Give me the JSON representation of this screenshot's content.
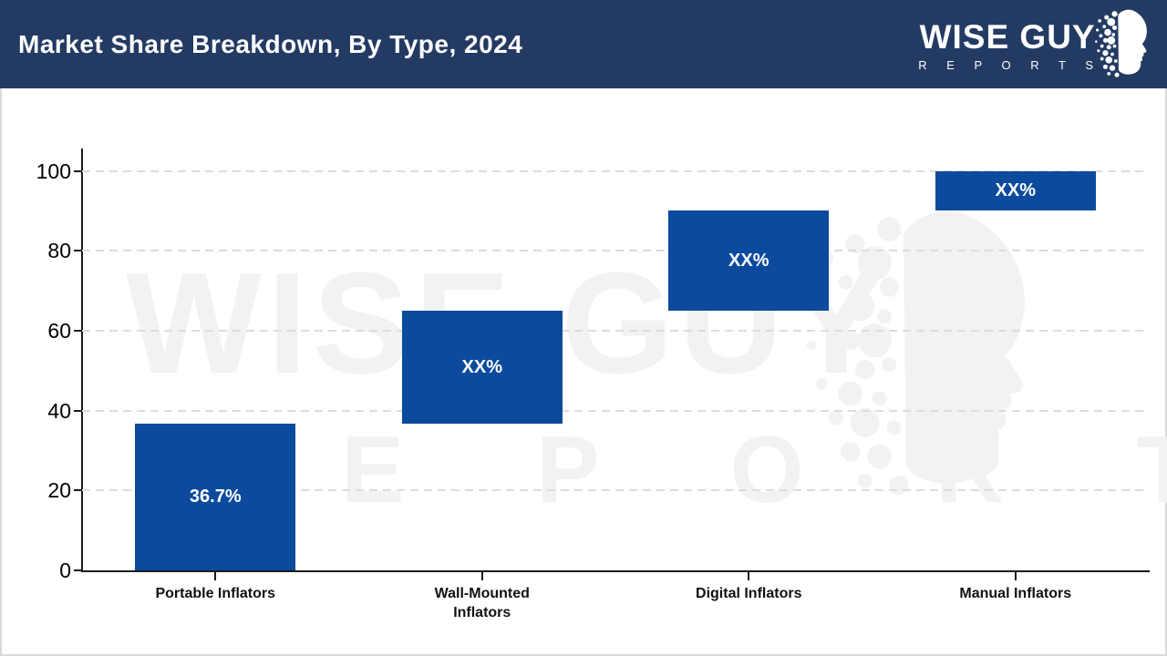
{
  "header": {
    "bg_color": "#233a63",
    "title": "Market Share Breakdown, By Type, 2024",
    "logo": {
      "name": "WISE GUY",
      "sub": "R E P O R T S"
    }
  },
  "watermark": {
    "name": "WISE GUY",
    "sub": "R E P O R T S"
  },
  "chart_data": {
    "type": "bar",
    "subtype": "waterfall",
    "title": "Market Share Breakdown, By Type, 2024",
    "categories": [
      "Portable Inflators",
      "Wall-Mounted Inflators",
      "Digital Inflators",
      "Manual Inflators"
    ],
    "series": [
      {
        "name": "Market share (%)",
        "segments": [
          {
            "category": "Portable Inflators",
            "start": 0,
            "end": 36.7,
            "value": 36.7,
            "label": "36.7%"
          },
          {
            "category": "Wall-Mounted Inflators",
            "start": 36.7,
            "end": 65,
            "value": 28.3,
            "label": "XX%"
          },
          {
            "category": "Digital Inflators",
            "start": 65,
            "end": 90,
            "value": 25,
            "label": "XX%"
          },
          {
            "category": "Manual Inflators",
            "start": 90,
            "end": 100,
            "value": 10,
            "label": "XX%"
          }
        ]
      }
    ],
    "xlabel": "",
    "ylabel": "",
    "ylim": [
      0,
      105
    ],
    "yticks": [
      0,
      20,
      40,
      60,
      80,
      100
    ],
    "grid": "horizontal-dashed",
    "legend": "none",
    "bar_color": "#0b4a9c",
    "bar_label_color": "#ffffff",
    "axis_color": "#1a1a1a",
    "gridline_color": "#dcdcdc"
  }
}
